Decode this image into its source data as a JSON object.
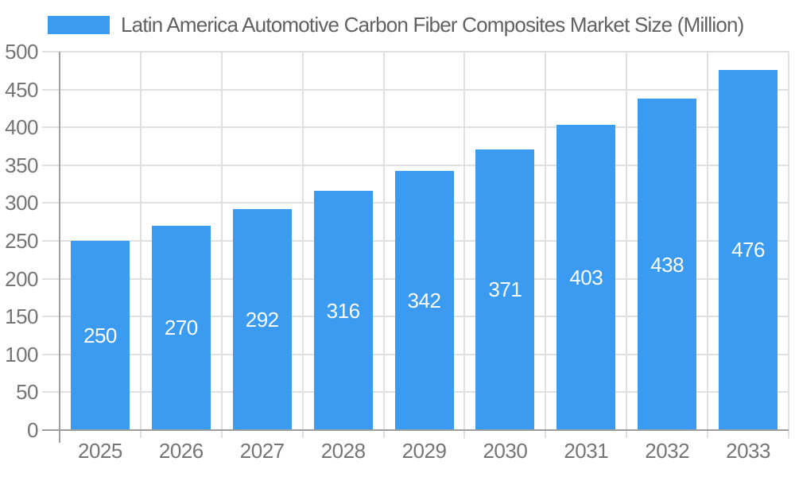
{
  "colors": {
    "bar": "#3B9BF0",
    "grid": "#e0e0e0",
    "axis": "#9e9e9e",
    "axis_label": "#757575",
    "bar_label": "#ffffff",
    "legend_text": "#616161",
    "background": "#ffffff"
  },
  "legend": {
    "label": "Latin America Automotive Carbon Fiber Composites Market Size (Million)"
  },
  "chart_data": {
    "type": "bar",
    "title": "Latin America Automotive Carbon Fiber Composites Market Size (Million)",
    "categories": [
      "2025",
      "2026",
      "2027",
      "2028",
      "2029",
      "2030",
      "2031",
      "2032",
      "2033"
    ],
    "values": [
      250,
      270,
      292,
      316,
      342,
      371,
      403,
      438,
      476
    ],
    "bar_value_labels": [
      "250",
      "270",
      "292",
      "316",
      "342",
      "371",
      "403",
      "438",
      "476"
    ],
    "xlabel": "",
    "ylabel": "",
    "ylim": [
      0,
      500
    ],
    "yticks": [
      0,
      50,
      100,
      150,
      200,
      250,
      300,
      350,
      400,
      450,
      500
    ],
    "grid": true,
    "legend_position": "top-left",
    "bar_labels_inside": true
  }
}
